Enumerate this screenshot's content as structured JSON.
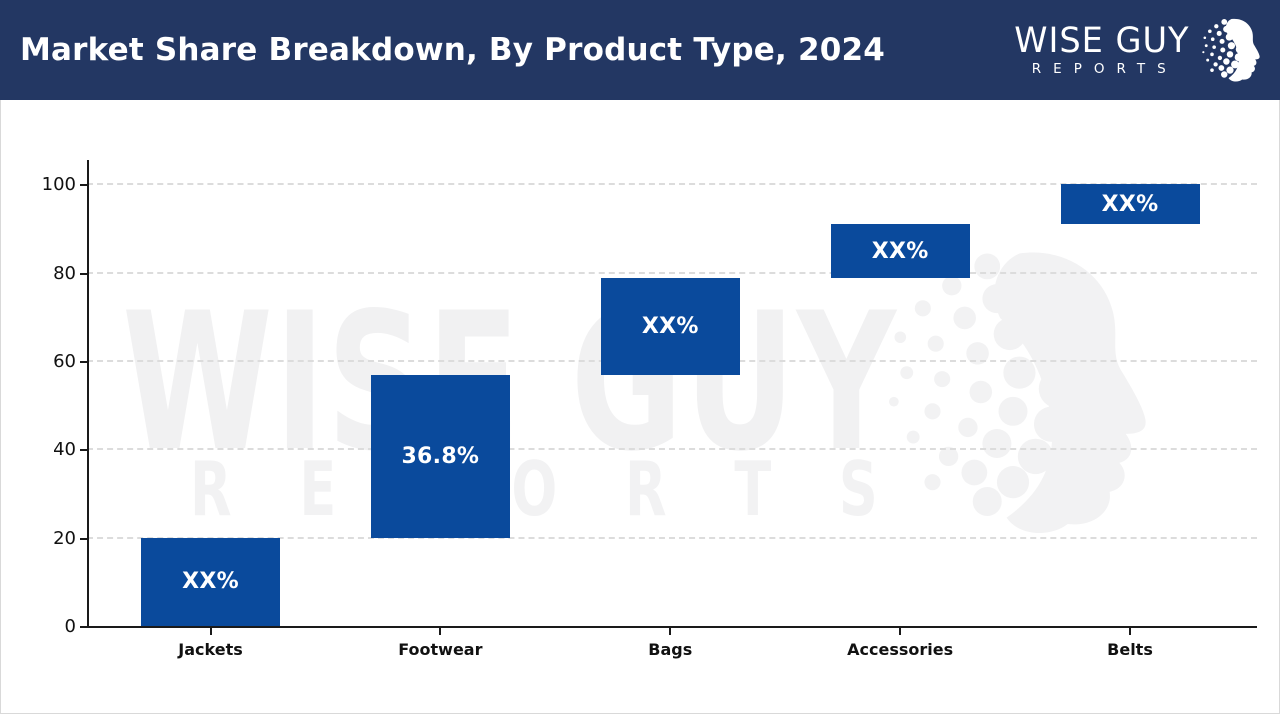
{
  "header": {
    "title": "Market Share Breakdown, By Product Type, 2024",
    "logo": {
      "line1": "WISE GUY",
      "line2": "REPORTS"
    }
  },
  "watermark": {
    "line1": "WISE GUY",
    "line2": "R E P O R T S"
  },
  "colors": {
    "header_bg": "#233763",
    "bar": "#0a4a9c",
    "bar_label": "#ffffff",
    "axis": "#1a1a1a",
    "gridline": "#dcdcdc",
    "watermark": "#f2f2f3"
  },
  "chart_data": {
    "type": "bar",
    "subtype": "waterfall",
    "title": "Market Share Breakdown, By Product Type, 2024",
    "categories": [
      "Jackets",
      "Footwear",
      "Bags",
      "Accessories",
      "Belts"
    ],
    "segments": [
      {
        "category": "Jackets",
        "start": 0,
        "end": 20,
        "label": "XX%"
      },
      {
        "category": "Footwear",
        "start": 20,
        "end": 56.8,
        "label": "36.8%"
      },
      {
        "category": "Bags",
        "start": 56.8,
        "end": 78.7,
        "label": "XX%"
      },
      {
        "category": "Accessories",
        "start": 78.7,
        "end": 91,
        "label": "XX%"
      },
      {
        "category": "Belts",
        "start": 91,
        "end": 100,
        "label": "XX%"
      }
    ],
    "yticks": [
      0,
      20,
      40,
      60,
      80,
      100
    ],
    "ylim": [
      0,
      105
    ],
    "xlabel": "",
    "ylabel": "",
    "grid": "horizontal-dashed",
    "legend": "none",
    "unit": "percent"
  }
}
